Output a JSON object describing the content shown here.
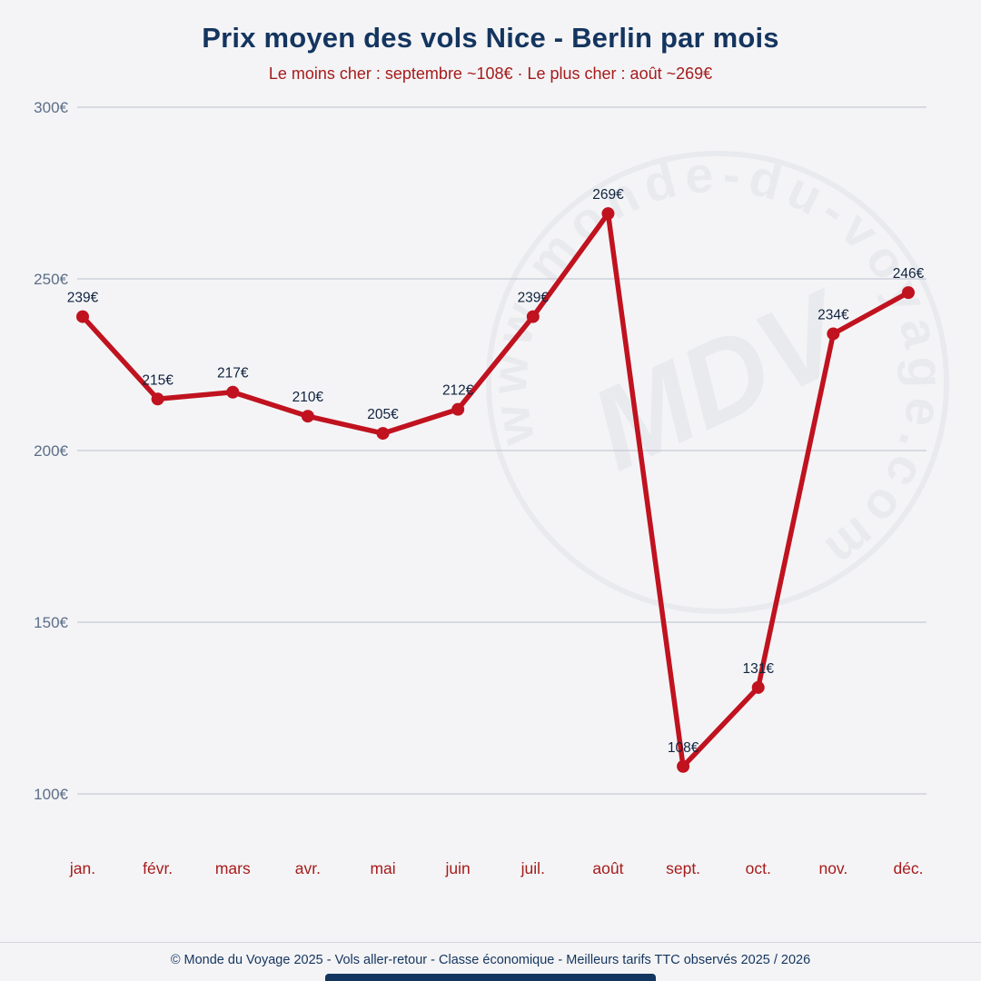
{
  "header": {
    "title": "Prix moyen des vols Nice - Berlin par mois",
    "subtitle": "Le moins cher : septembre ~108€ · Le plus cher : août ~269€"
  },
  "chart_data": {
    "type": "line",
    "title": "Prix moyen des vols Nice - Berlin par mois",
    "categories": [
      "jan.",
      "févr.",
      "mars",
      "avr.",
      "mai",
      "juin",
      "juil.",
      "août",
      "sept.",
      "oct.",
      "nov.",
      "déc."
    ],
    "values": [
      239,
      215,
      217,
      210,
      205,
      212,
      239,
      269,
      108,
      131,
      234,
      246
    ],
    "point_labels": [
      "239€",
      "215€",
      "217€",
      "210€",
      "205€",
      "212€",
      "239€",
      "269€",
      "108€",
      "131€",
      "234€",
      "246€"
    ],
    "ylim": [
      100,
      300
    ],
    "yticks": [
      100,
      150,
      200,
      250,
      300
    ],
    "ytick_labels": [
      "100€",
      "150€",
      "200€",
      "250€",
      "300€"
    ],
    "grid": true,
    "legend": "none",
    "line_color": "#c0121f",
    "grid_color": "#c6cad6",
    "ytick_color": "#5c6e88",
    "xtick_color": "#a61b1b",
    "label_color": "#10233f"
  },
  "watermark": {
    "ring_text": "www.monde-du-voyage.com",
    "center_text": "MDV"
  },
  "footer": {
    "text": "© Monde du Voyage 2025 - Vols aller-retour - Classe économique - Meilleurs tarifs TTC observés 2025 / 2026"
  }
}
